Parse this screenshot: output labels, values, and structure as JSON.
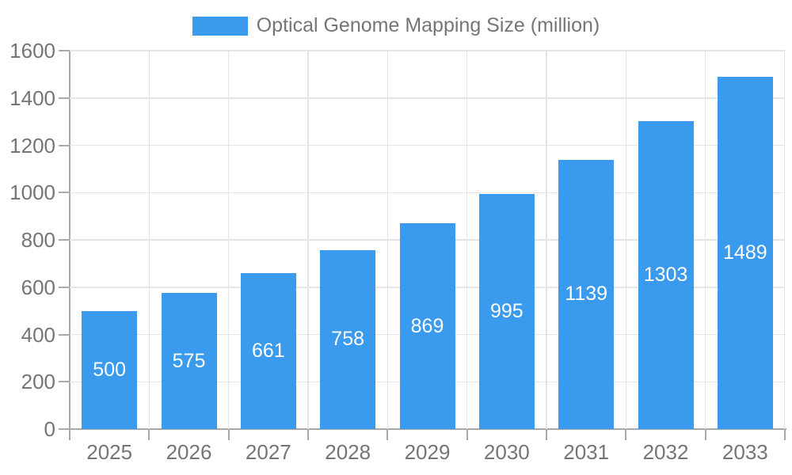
{
  "legend": {
    "label": "Optical Genome Mapping Size (million)"
  },
  "colors": {
    "bar": "#399AEE",
    "axis_line": "#A8A8A8",
    "grid_line": "#E5E5E5",
    "tick_label_text": "#757575",
    "legend_text": "#757575",
    "bar_label_text": "#FFFFFF",
    "background": "#FFFFFF"
  },
  "chart_data": {
    "type": "bar",
    "title": "Optical Genome Mapping Size (million)",
    "categories": [
      "2025",
      "2026",
      "2027",
      "2028",
      "2029",
      "2030",
      "2031",
      "2032",
      "2033"
    ],
    "values": [
      500,
      575,
      661,
      758,
      869,
      995,
      1139,
      1303,
      1489
    ],
    "series_name": "Optical Genome Mapping Size (million)",
    "xlabel": "",
    "ylabel": "",
    "ylim": [
      0,
      1600
    ],
    "ytick_step": 200,
    "yticks": [
      0,
      200,
      400,
      600,
      800,
      1000,
      1200,
      1400,
      1600
    ],
    "grid": true,
    "legend_position": "top",
    "bar_value_labels": true
  }
}
